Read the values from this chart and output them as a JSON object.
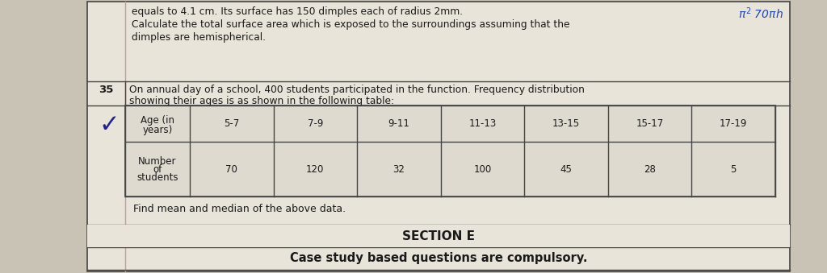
{
  "top_text_line1": "equals to 4.1 cm. Its surface has 150 dimples each of radius 2mm.",
  "top_text_line2": "Calculate the total surface area which is exposed to the surroundings assuming that the",
  "top_text_line3": "dimples are hemispherical.",
  "side_note": "π² 70πh",
  "q35_number": "35",
  "q35_text_line1": "On annual day of a school, 400 students participated in the function. Frequency distribution",
  "q35_text_line2": "showing their ages is as shown in the following table:",
  "table_header_col0": "Age (in\nyears)",
  "table_header_cols": [
    "5-7",
    "7-9",
    "9-11",
    "11-13",
    "13-15",
    "15-17",
    "17-19"
  ],
  "table_row_label": "Number\nof\nstudents",
  "table_values": [
    70,
    120,
    32,
    100,
    45,
    28,
    5
  ],
  "footer_text": "Find mean and median of the above data.",
  "section_text": "SECTION E",
  "case_study_text": "Case study based questions are compulsory.",
  "bg_color": "#c8c3b5",
  "paper_color": "#e8e4da",
  "table_bg": "#dedad0",
  "border_color": "#777777",
  "dark_border": "#444444",
  "text_color": "#1a1a1a",
  "note_color": "#2244aa",
  "tick_color": "#222288"
}
